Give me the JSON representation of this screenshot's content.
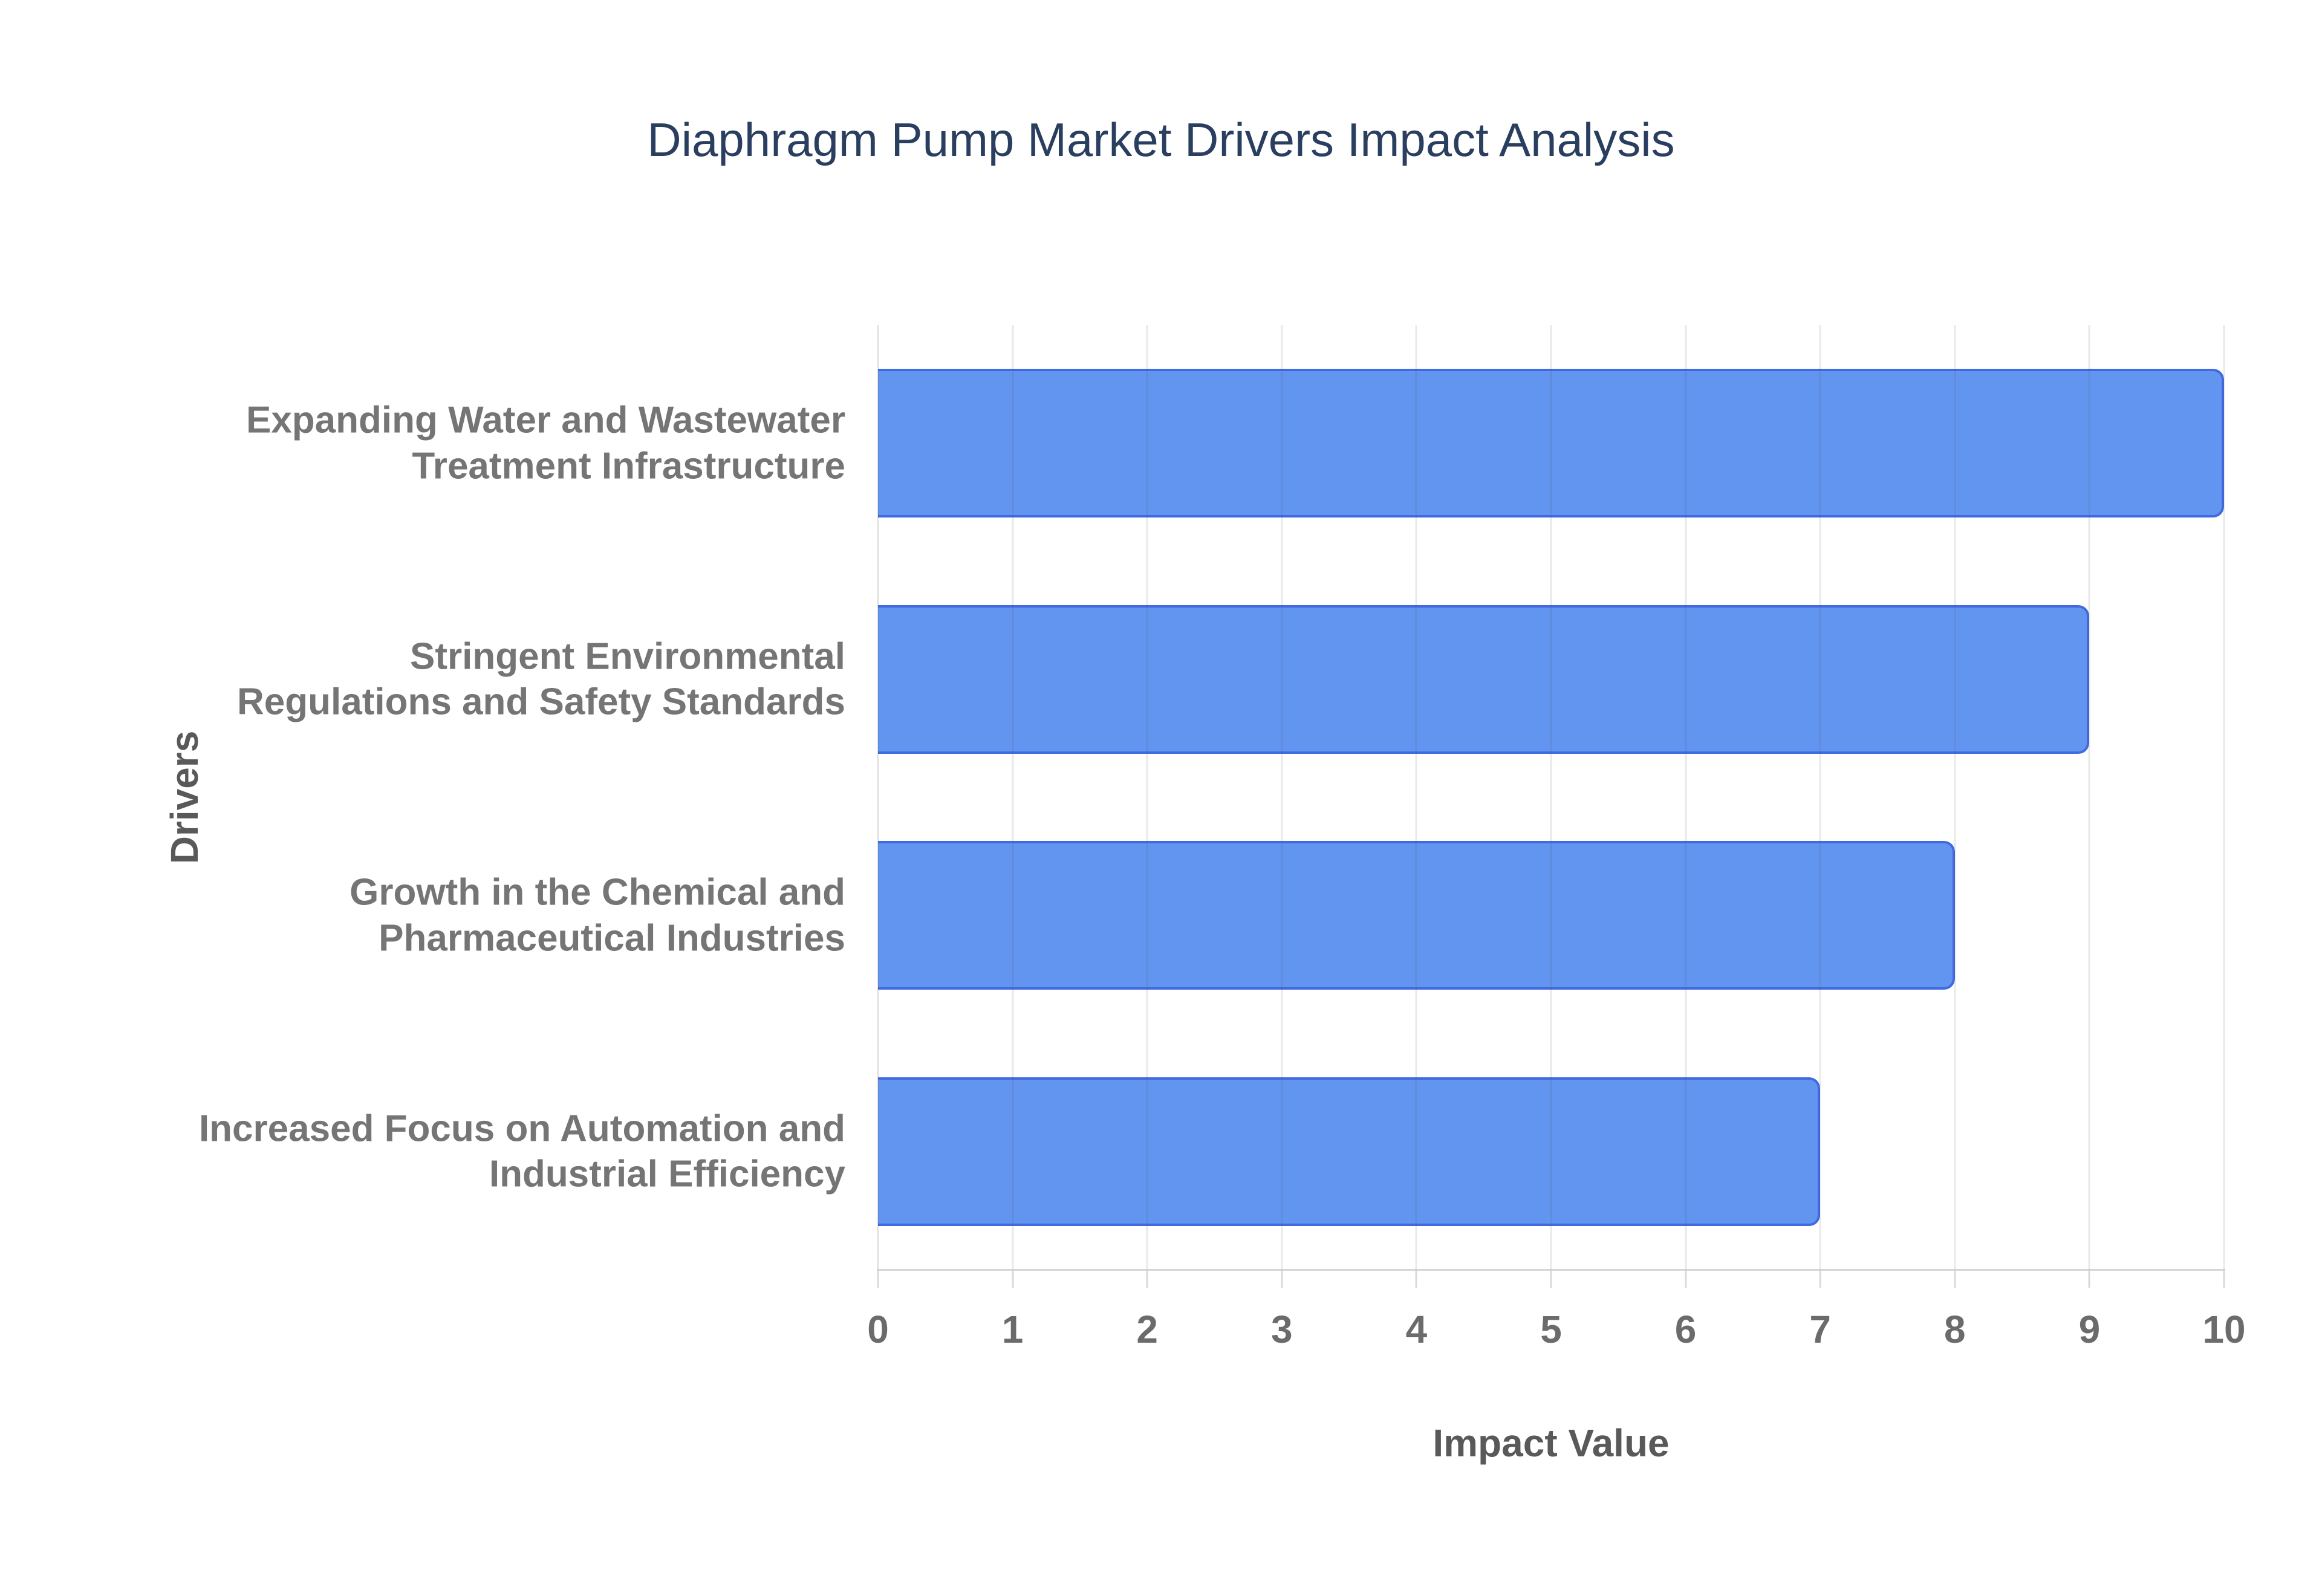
{
  "chart_data": {
    "type": "bar",
    "orientation": "horizontal",
    "title": "Diaphragm Pump Market Drivers Impact Analysis",
    "categories": [
      "Expanding Water and Wastewater Treatment Infrastructure",
      "Stringent Environmental Regulations and Safety Standards",
      "Growth in the Chemical and Pharmaceutical Industries",
      "Increased Focus on Automation and Industrial Efficiency"
    ],
    "values": [
      10,
      9,
      8,
      7
    ],
    "xlabel": "Impact Value",
    "ylabel": "Drivers",
    "xlim": [
      0,
      10
    ],
    "xticks": [
      0,
      1,
      2,
      3,
      4,
      5,
      6,
      7,
      8,
      9,
      10
    ],
    "grid": true,
    "legend": false,
    "colors": {
      "bar_fill": "#6295f0",
      "bar_border": "#4169e1",
      "title_text": "#2a3f5f",
      "category_text": "#757575",
      "tick_text": "#6b6b6b",
      "axis_title_text": "#595959",
      "axis_line": "#d6d6d6",
      "background": "#ffffff"
    }
  }
}
